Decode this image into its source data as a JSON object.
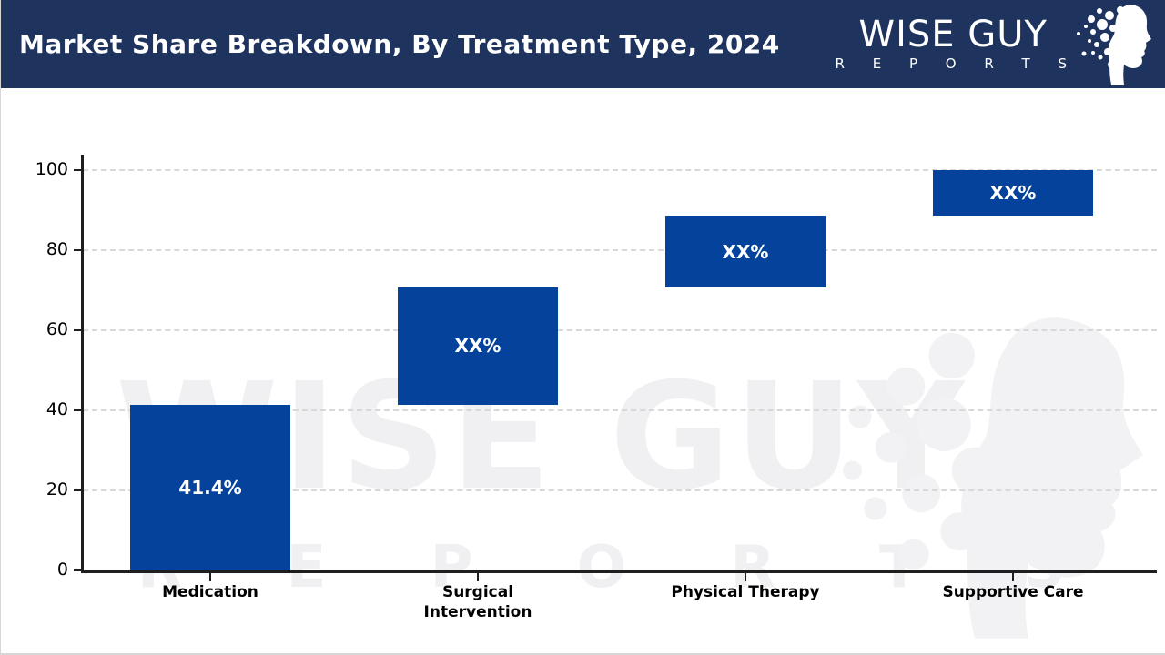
{
  "header": {
    "title": "Market Share Breakdown, By Treatment Type, 2024",
    "logo": {
      "line1": "WISE GUY",
      "line2": "R E P O R T S"
    }
  },
  "watermark": {
    "line1": "WISE GUY",
    "line2": "R E P O R T S"
  },
  "colors": {
    "header_bg": "#1e345e",
    "bar": "#05429b",
    "bar_label": "#ffffff",
    "gridline": "#d8d8d8",
    "axis": "#1f1f1f",
    "watermark": "#f0f0f2"
  },
  "chart_data": {
    "type": "bar",
    "subtype": "waterfall",
    "title": "Market Share Breakdown, By Treatment Type, 2024",
    "xlabel": "",
    "ylabel": "",
    "categories": [
      "Medication",
      "Surgical Intervention",
      "Physical Therapy",
      "Supportive Care"
    ],
    "segments": [
      {
        "category": "Medication",
        "start": 0,
        "end": 41.4,
        "label": "41.4%"
      },
      {
        "category": "Surgical Intervention",
        "start": 41.4,
        "end": 70.7,
        "label": "XX%"
      },
      {
        "category": "Physical Therapy",
        "start": 70.7,
        "end": 88.6,
        "label": "XX%"
      },
      {
        "category": "Supportive Care",
        "start": 88.6,
        "end": 100.0,
        "label": "XX%"
      }
    ],
    "yticks": [
      0,
      20,
      40,
      60,
      80,
      100
    ],
    "ylim": [
      0,
      104
    ],
    "grid": "horizontal-dashed",
    "legend": "none"
  }
}
